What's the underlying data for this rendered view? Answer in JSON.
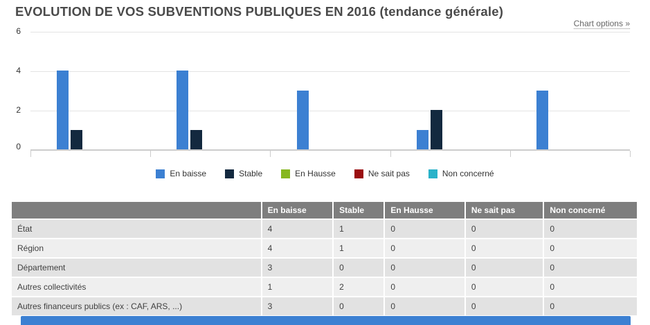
{
  "header": {
    "title": "EVOLUTION DE VOS SUBVENTIONS PUBLIQUES EN 2016 (tendance générale)",
    "chart_options_label": "Chart options »"
  },
  "chart_data": {
    "type": "bar",
    "title": "",
    "xlabel": "",
    "ylabel": "",
    "categories": [
      "État",
      "Région",
      "Département",
      "Autres collectivités",
      "Autres financeurs publics (ex : CAF, ARS, ...)"
    ],
    "series": [
      {
        "name": "En baisse",
        "color": "#3c80d2",
        "values": [
          4,
          4,
          3,
          1,
          3
        ]
      },
      {
        "name": "Stable",
        "color": "#13293f",
        "values": [
          1,
          1,
          0,
          2,
          0
        ]
      },
      {
        "name": "En Hausse",
        "color": "#86b71f",
        "values": [
          0,
          0,
          0,
          0,
          0
        ]
      },
      {
        "name": "Ne sait pas",
        "color": "#9a0e10",
        "values": [
          0,
          0,
          0,
          0,
          0
        ]
      },
      {
        "name": "Non concerné",
        "color": "#29b2c9",
        "values": [
          0,
          0,
          0,
          0,
          0
        ]
      }
    ],
    "ylim": [
      0,
      6
    ],
    "yticks": [
      0,
      2,
      4,
      6
    ],
    "grid": true,
    "legend_position": "bottom",
    "x_axis_labels_shown": false
  },
  "table": {
    "columns": [
      "",
      "En baisse",
      "Stable",
      "En Hausse",
      "Ne sait pas",
      "Non concerné"
    ],
    "rows": [
      {
        "label": "État",
        "values": [
          4,
          1,
          0,
          0,
          0
        ]
      },
      {
        "label": "Région",
        "values": [
          4,
          1,
          0,
          0,
          0
        ]
      },
      {
        "label": "Département",
        "values": [
          3,
          0,
          0,
          0,
          0
        ]
      },
      {
        "label": "Autres collectivités",
        "values": [
          1,
          2,
          0,
          0,
          0
        ]
      },
      {
        "label": "Autres financeurs publics (ex : CAF, ARS, ...)",
        "values": [
          3,
          0,
          0,
          0,
          0
        ]
      }
    ]
  },
  "footer": {
    "accent_bar_color": "#3c80d2"
  }
}
